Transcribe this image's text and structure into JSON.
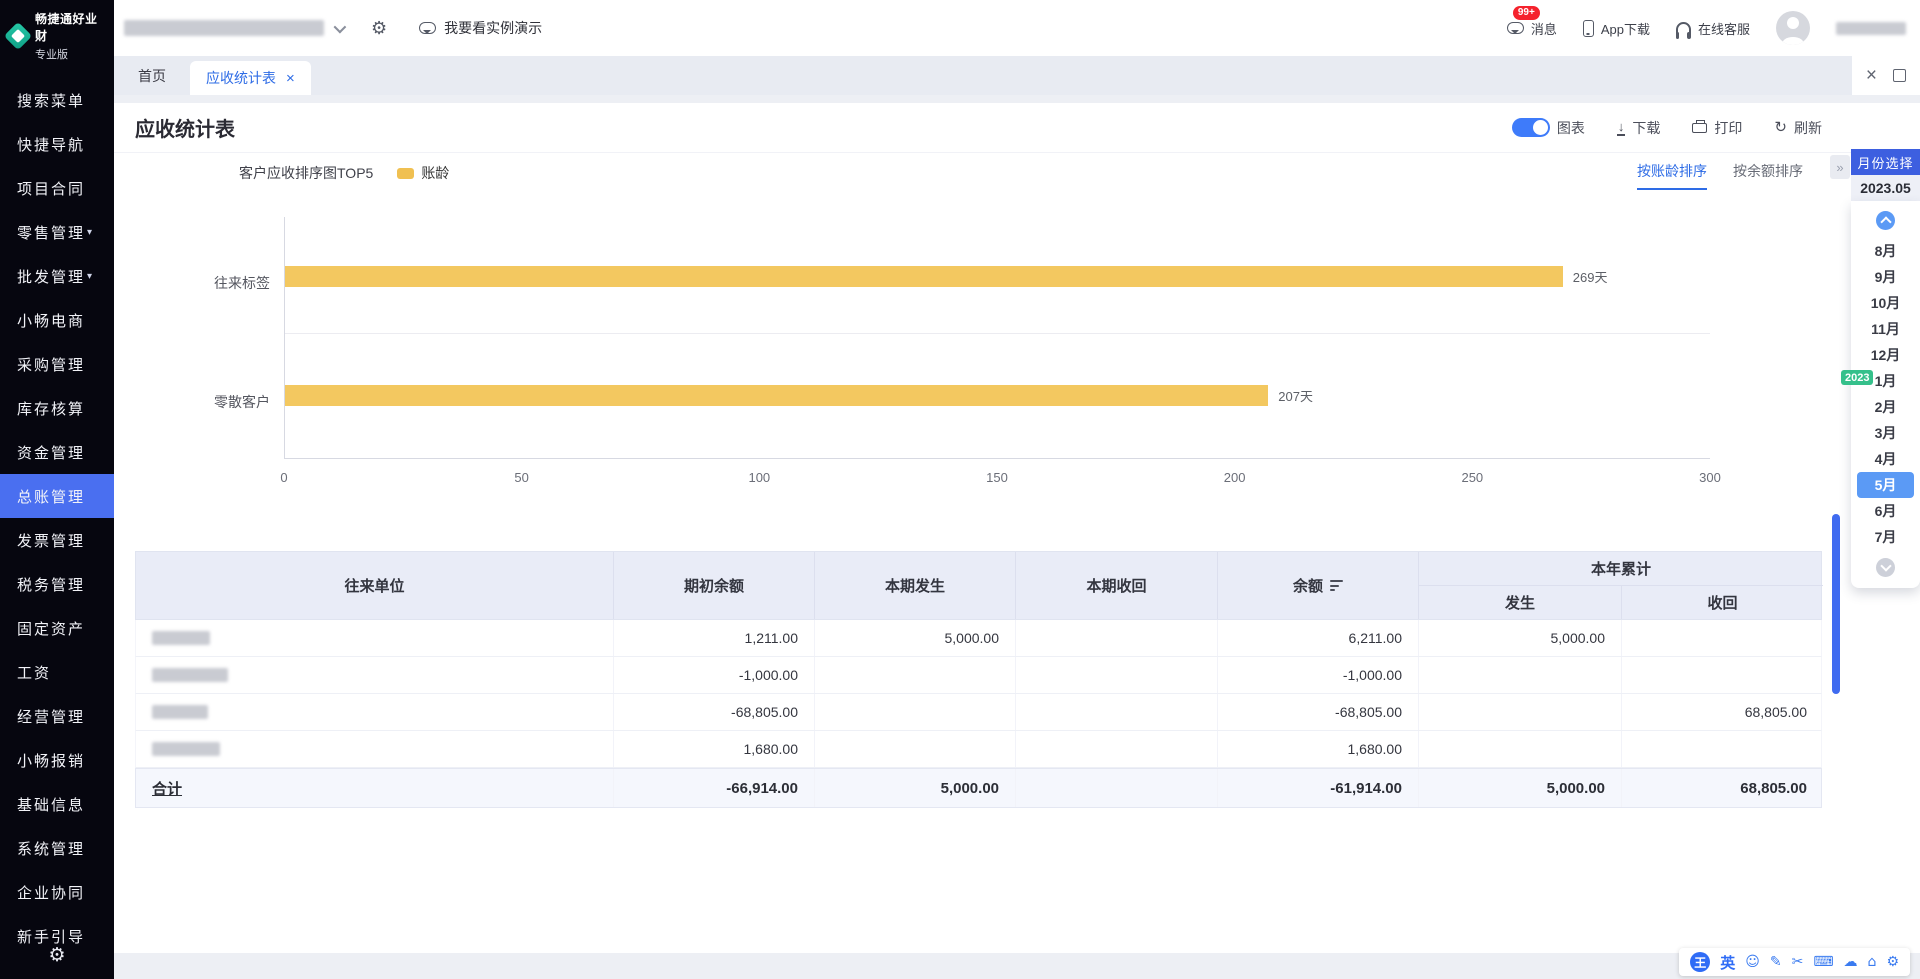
{
  "colors": {
    "accent_blue": "#2e6ce6",
    "bar_yellow": "#f3c860",
    "sidebar_active_blue": "#4a6ff0",
    "badge_red": "#f5222d",
    "month_active_blue": "#5b9af5",
    "year_badge_green": "#35c08b",
    "scrollbar_blue": "#3f6bf0"
  },
  "brand": {
    "line1": "畅捷通好业财",
    "line2": "专业版"
  },
  "sidebar": {
    "items": [
      {
        "label": "搜索菜单"
      },
      {
        "label": "快捷导航"
      },
      {
        "label": "项目合同"
      },
      {
        "label": "零售管理",
        "caret": "▾"
      },
      {
        "label": "批发管理",
        "caret": "▾"
      },
      {
        "label": "小畅电商"
      },
      {
        "label": "采购管理"
      },
      {
        "label": "库存核算"
      },
      {
        "label": "资金管理"
      },
      {
        "label": "总账管理",
        "active": true
      },
      {
        "label": "发票管理"
      },
      {
        "label": "税务管理"
      },
      {
        "label": "固定资产"
      },
      {
        "label": "工资"
      },
      {
        "label": "经营管理"
      },
      {
        "label": "小畅报销"
      },
      {
        "label": "基础信息"
      },
      {
        "label": "系统管理"
      },
      {
        "label": "企业协同"
      },
      {
        "label": "新手引导"
      }
    ]
  },
  "topbar": {
    "company_masked": true,
    "demo_text": "我要看实例演示",
    "messages_label": "消息",
    "messages_badge": "99+",
    "app_download_label": "App下载",
    "support_label": "在线客服",
    "user_masked": true
  },
  "tabs": {
    "home": "首页",
    "active_tab": "应收统计表",
    "close_glyph": "×"
  },
  "page": {
    "title": "应收统计表",
    "chart_toggle_label": "图表",
    "download_label": "下载",
    "print_label": "打印",
    "refresh_label": "刷新",
    "refresh_glyph": "↻",
    "download_glyph": "↓"
  },
  "chart_data": {
    "type": "bar",
    "orientation": "horizontal",
    "title": "客户应收排序图TOP5",
    "legend": [
      "账龄"
    ],
    "legend_position": "top",
    "categories": [
      "往来标签",
      "零散客户"
    ],
    "values": [
      269,
      207
    ],
    "value_labels": [
      "269天",
      "207天"
    ],
    "unit": "天",
    "xlim": [
      0,
      300
    ],
    "xticks": [
      0,
      50,
      100,
      150,
      200,
      250,
      300
    ],
    "grid": true,
    "bar_color": "#f3c860",
    "sort_options": [
      "按账龄排序",
      "按余额排序"
    ],
    "active_sort": "按账龄排序"
  },
  "table": {
    "col_headers": [
      "往来单位",
      "期初余额",
      "本期发生",
      "本期收回",
      "余额"
    ],
    "group_header": "本年累计",
    "sub_headers": [
      "发生",
      "收回"
    ],
    "rows": [
      {
        "name_masked": true,
        "values": [
          "1,211.00",
          "5,000.00",
          "",
          "6,211.00",
          "5,000.00",
          ""
        ]
      },
      {
        "name_masked": true,
        "values": [
          "-1,000.00",
          "",
          "",
          "-1,000.00",
          "",
          ""
        ]
      },
      {
        "name_masked": true,
        "values": [
          "-68,805.00",
          "",
          "",
          "-68,805.00",
          "",
          "68,805.00"
        ]
      },
      {
        "name_masked": true,
        "values": [
          "1,680.00",
          "",
          "",
          "1,680.00",
          "",
          ""
        ]
      }
    ],
    "total": {
      "label": "合计",
      "values": [
        "-66,914.00",
        "5,000.00",
        "",
        "-61,914.00",
        "5,000.00",
        "68,805.00"
      ]
    }
  },
  "month_panel": {
    "title": "月份选择",
    "current": "2023.05",
    "year_badge": "2023",
    "months": [
      "8月",
      "9月",
      "10月",
      "11月",
      "12月",
      "1月",
      "2月",
      "3月",
      "4月",
      "5月",
      "6月",
      "7月"
    ],
    "active_month": "5月",
    "collapse_glyph": "»"
  },
  "ime": {
    "logo_char": "王",
    "lang": "英",
    "icons": [
      {
        "name": "emoji-icon",
        "glyph": "☺"
      },
      {
        "name": "pen-icon",
        "glyph": "✎"
      },
      {
        "name": "scissors-icon",
        "glyph": "✂"
      },
      {
        "name": "keyboard-icon",
        "glyph": "⌨"
      },
      {
        "name": "cloud-icon",
        "glyph": "☁"
      },
      {
        "name": "skin-icon",
        "glyph": "⌂"
      },
      {
        "name": "settings-icon",
        "glyph": "⚙"
      }
    ]
  }
}
